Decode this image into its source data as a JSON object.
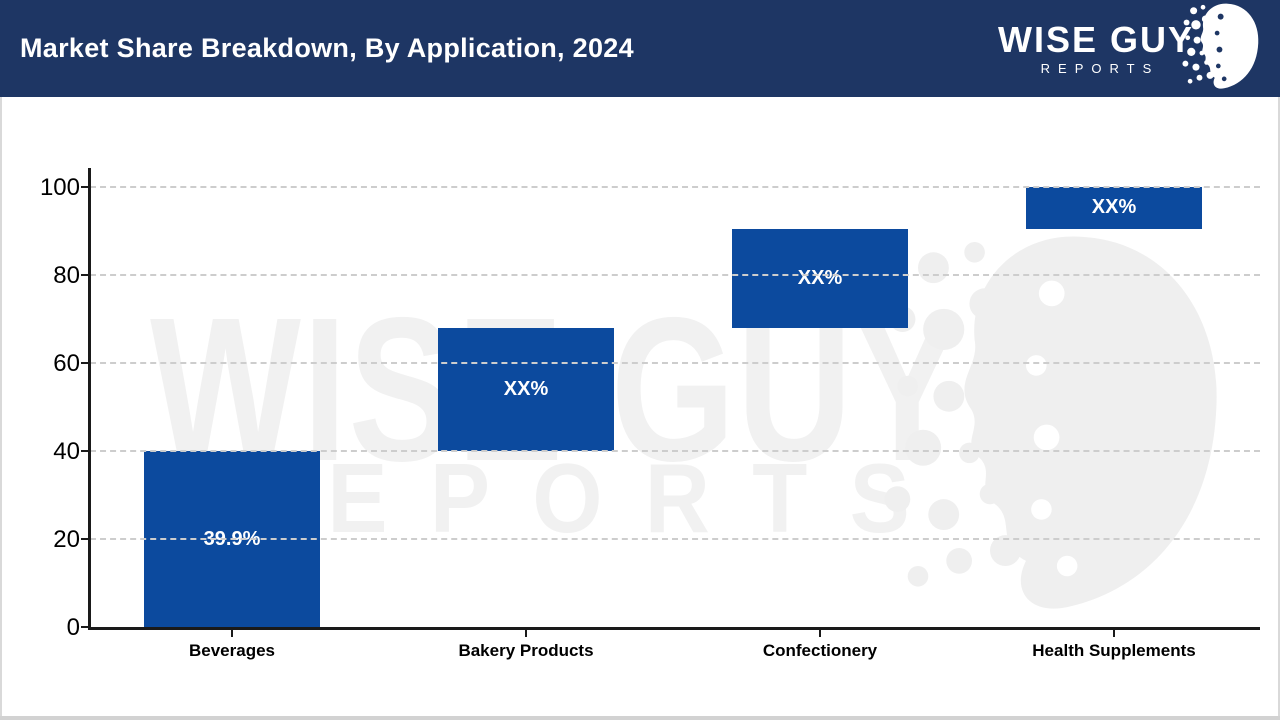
{
  "header": {
    "title": "Market Share Breakdown, By Application, 2024",
    "logo": {
      "line1": "WISE GUY",
      "line2": "REPORTS"
    }
  },
  "watermark": {
    "line1": "WISE GUY",
    "line2": "REPORTS"
  },
  "colors": {
    "header_bg": "#1e3664",
    "bar": "#0c4a9e",
    "grid": "#cdcdcd",
    "axis": "#1a1a1a",
    "bar_label": "#ffffff",
    "watermark": "#f1f1f1"
  },
  "chart_data": {
    "type": "bar",
    "subtype": "waterfall",
    "title": "Market Share Breakdown, By Application, 2024",
    "categories": [
      "Beverages",
      "Bakery Products",
      "Confectionery",
      "Health Supplements"
    ],
    "segments": [
      {
        "category": "Beverages",
        "start": 0,
        "end": 39.9,
        "label": "39.9%"
      },
      {
        "category": "Bakery Products",
        "start": 39.9,
        "end": 68,
        "label": "XX%"
      },
      {
        "category": "Confectionery",
        "start": 68,
        "end": 90.5,
        "label": "XX%"
      },
      {
        "category": "Health Supplements",
        "start": 90.5,
        "end": 100,
        "label": "XX%"
      }
    ],
    "yticks": [
      0,
      20,
      40,
      60,
      80,
      100
    ],
    "ylim": [
      0,
      104
    ],
    "xlabel": "",
    "ylabel": "",
    "grid": "horizontal-dashed",
    "legend": "none"
  }
}
